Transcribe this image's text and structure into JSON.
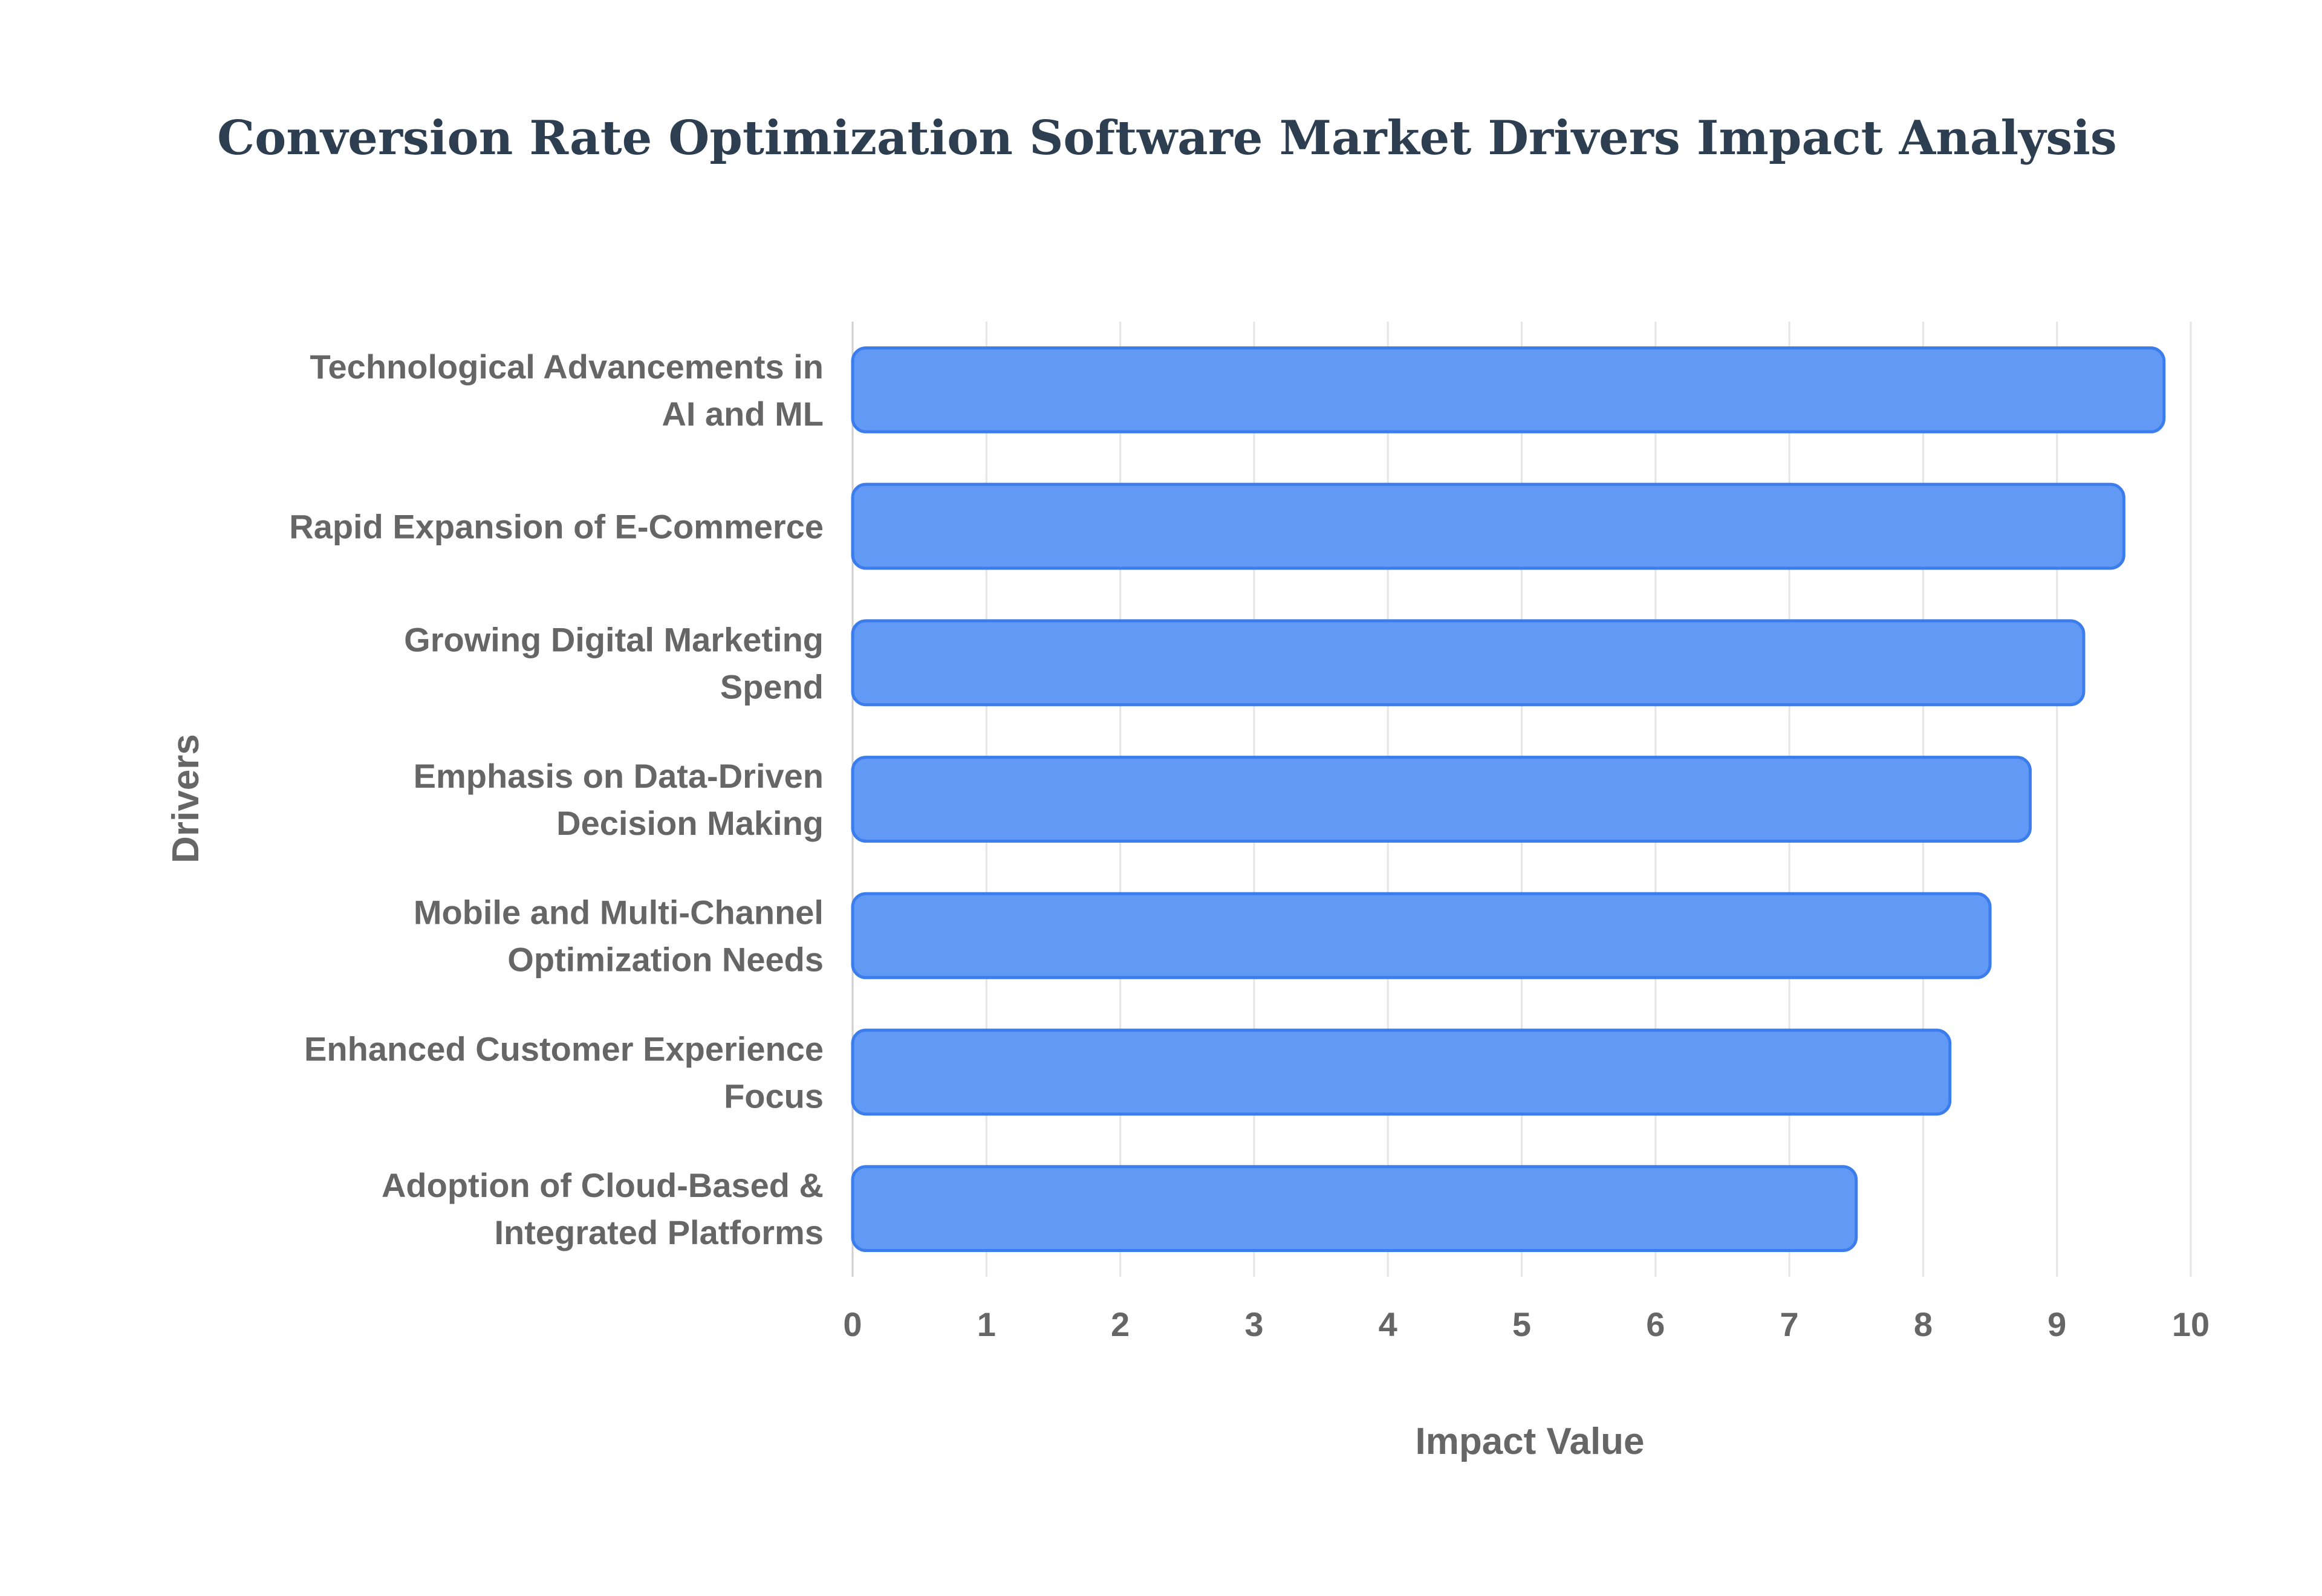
{
  "chart_data": {
    "type": "bar",
    "orientation": "horizontal",
    "title": "Conversion Rate Optimization Software Market Drivers Impact Analysis",
    "xlabel": "Impact Value",
    "ylabel": "Drivers",
    "xlim": [
      0,
      10
    ],
    "xticks": [
      "0",
      "1",
      "2",
      "3",
      "4",
      "5",
      "6",
      "7",
      "8",
      "9",
      "10"
    ],
    "grid": true,
    "categories": [
      [
        "Technological Advancements in",
        "AI and ML"
      ],
      [
        "Rapid Expansion of E-Commerce"
      ],
      [
        "Growing Digital Marketing",
        "Spend"
      ],
      [
        "Emphasis on Data-Driven",
        "Decision Making"
      ],
      [
        "Mobile and Multi-Channel",
        "Optimization Needs"
      ],
      [
        "Enhanced Customer Experience",
        "Focus"
      ],
      [
        "Adoption of Cloud-Based &",
        "Integrated Platforms"
      ]
    ],
    "values": [
      9.8,
      9.5,
      9.2,
      8.8,
      8.5,
      8.2,
      7.5
    ],
    "colors": {
      "bar_fill": "#6199f4",
      "bar_border": "#3b7ded",
      "grid": "#e5e5e5",
      "text": "#666666",
      "title": "#2c3e50"
    }
  }
}
